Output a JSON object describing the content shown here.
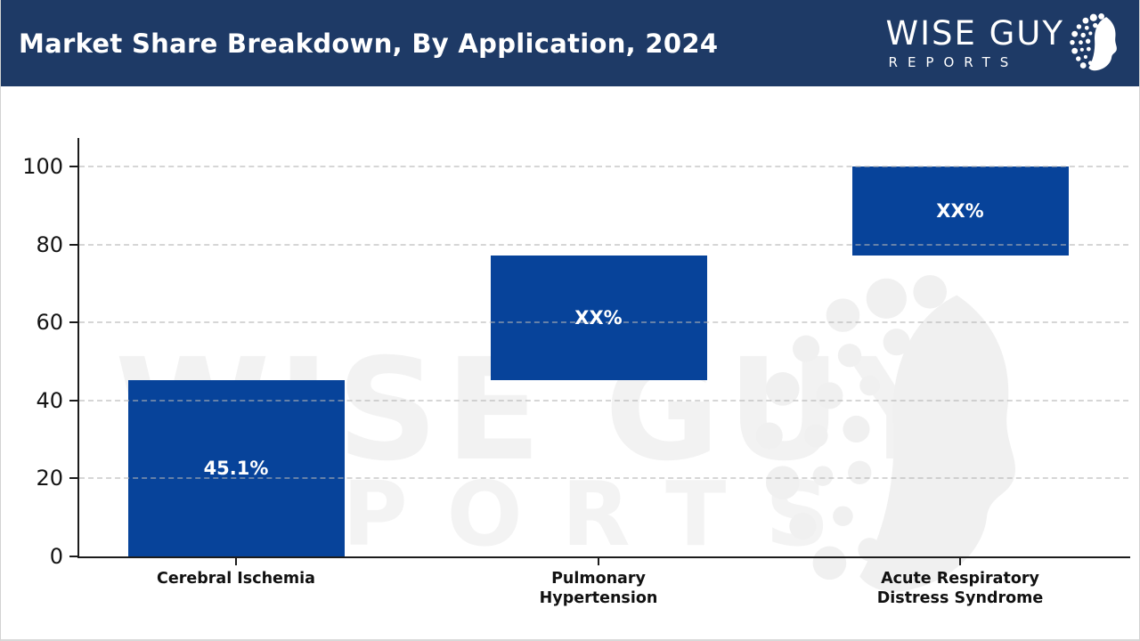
{
  "header": {
    "title": "Market Share Breakdown, By Application, 2024",
    "bg_color": "#1e3a66",
    "logo": {
      "line1": "WISE GUY",
      "line2": "REPORTS"
    }
  },
  "watermark": {
    "line1": "WISE GUY",
    "line2": "REPORTS"
  },
  "chart_data": {
    "type": "bar",
    "subtype": "waterfall",
    "title": "Market Share Breakdown, By Application, 2024",
    "categories": [
      [
        "Cerebral Ischemia"
      ],
      [
        "Pulmonary",
        "Hypertension"
      ],
      [
        "Acute Respiratory",
        "Distress Syndrome"
      ]
    ],
    "series": [
      {
        "name": "Market share (%)",
        "segments": [
          {
            "category": "Cerebral Ischemia",
            "start": 0,
            "end": 45.1,
            "label": "45.1%"
          },
          {
            "category": "Pulmonary Hypertension",
            "start": 45.1,
            "end": 77.2,
            "label": "XX%"
          },
          {
            "category": "Acute Respiratory Distress Syndrome",
            "start": 77.2,
            "end": 100,
            "label": "XX%"
          }
        ]
      }
    ],
    "ylim": [
      0,
      100
    ],
    "yticks": [
      0,
      20,
      40,
      60,
      80,
      100
    ],
    "grid": {
      "horizontal": true,
      "style": "dashed",
      "color": "#d9d9d9",
      "above_bars": true
    },
    "legend": "none",
    "bar_color": "#07439a",
    "bar_label_color": "#ffffff",
    "axis_color": "#1c1c1c"
  }
}
